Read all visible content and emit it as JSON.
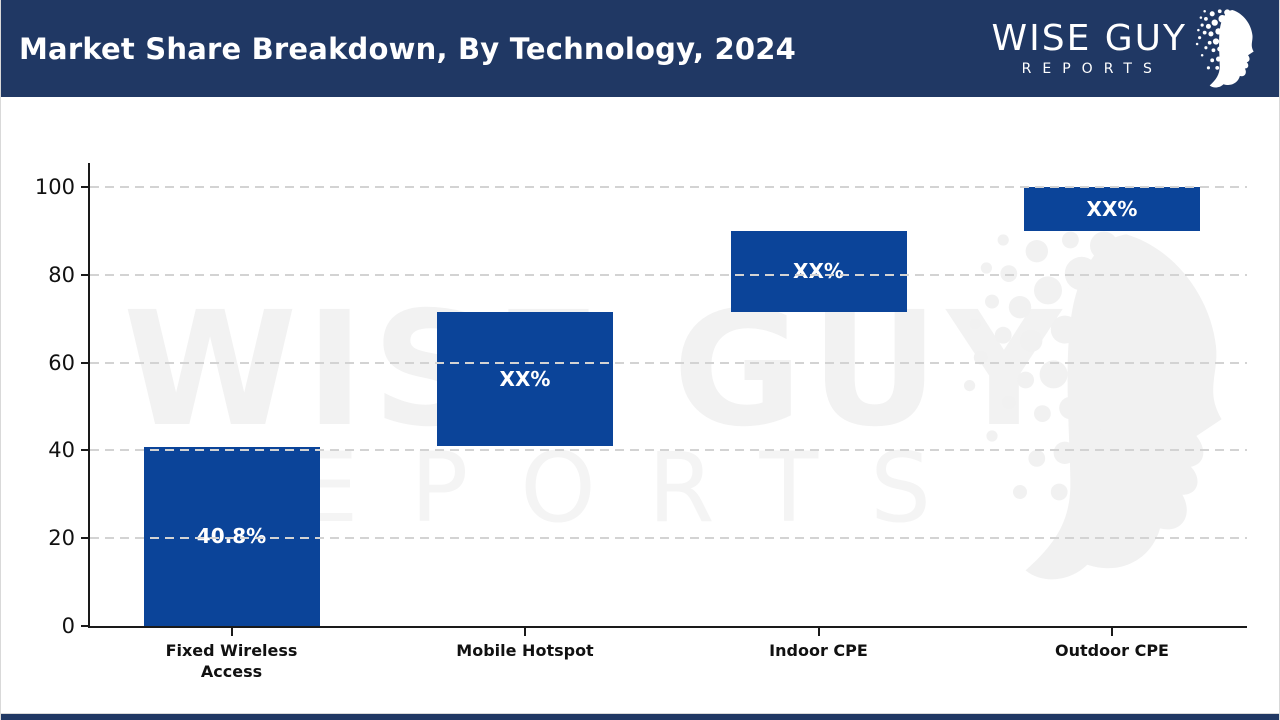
{
  "header": {
    "title": "Market Share Breakdown, By Technology, 2024",
    "logo": {
      "brand_line1": "WISE GUY",
      "brand_line2": "REPORTS"
    }
  },
  "watermark": {
    "line1": "WISE GUY",
    "line2": "REPORTS"
  },
  "chart_data": {
    "type": "bar",
    "subtype": "waterfall",
    "title": "Market Share Breakdown, By Technology, 2024",
    "categories": [
      "Fixed Wireless Access",
      "Mobile Hotspot",
      "Indoor CPE",
      "Outdoor CPE"
    ],
    "bars": [
      {
        "category": "Fixed Wireless Access",
        "base": 0,
        "top": 40.8,
        "label": "40.8%"
      },
      {
        "category": "Mobile Hotspot",
        "base": 41,
        "top": 71.5,
        "label": "XX%"
      },
      {
        "category": "Indoor CPE",
        "base": 71.5,
        "top": 90,
        "label": "XX%"
      },
      {
        "category": "Outdoor CPE",
        "base": 90,
        "top": 100,
        "label": "XX%"
      }
    ],
    "yticks": [
      0,
      20,
      40,
      60,
      80,
      100
    ],
    "ylim": [
      0,
      105
    ],
    "xlabel": "",
    "ylabel": "",
    "grid": "horizontal-dashed",
    "legend_position": "none",
    "bar_color": "#0b4499",
    "bar_label_color": "#ffffff"
  },
  "colors": {
    "header_bg": "#203864",
    "footer_bg": "#203864",
    "grid": "#d3d3d3",
    "axis": "#1a1a1a",
    "watermark": "#f2f2f2"
  }
}
